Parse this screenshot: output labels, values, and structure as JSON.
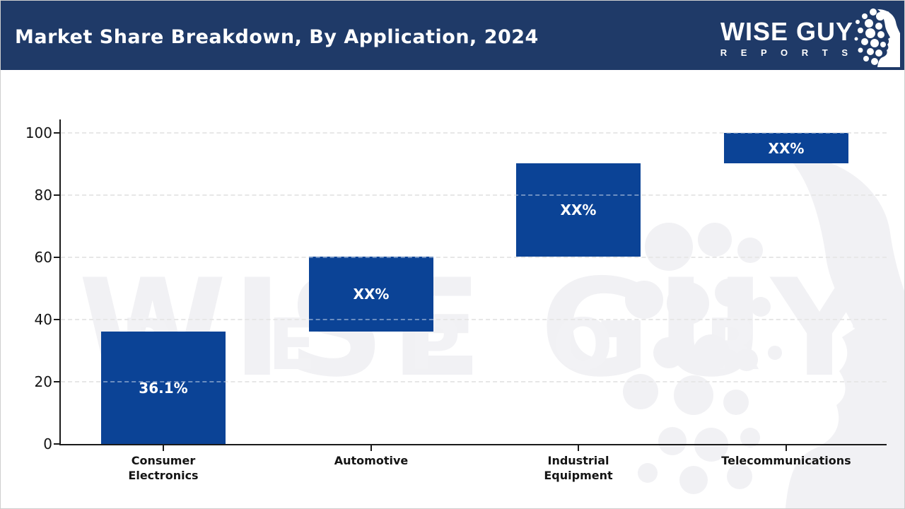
{
  "page": {
    "background": "#ffffff",
    "border_color": "#cfcfcf"
  },
  "header": {
    "title": "Market Share Breakdown, By Application, 2024",
    "bg_color": "#1F3A68",
    "text_color": "#ffffff",
    "logo": {
      "name": "WISE GUY",
      "subname": "R E P O R T S"
    }
  },
  "watermark": {
    "line1": "WISE GUY",
    "line2": "R E P O R T S"
  },
  "chart_data": {
    "type": "bar",
    "variant": "waterfall",
    "title": "Market Share Breakdown, By Application, 2024",
    "xlabel": "",
    "ylabel": "",
    "ylim": [
      0,
      104
    ],
    "yticks": [
      0,
      20,
      40,
      60,
      80,
      100
    ],
    "grid": true,
    "legend": false,
    "bar_color": "#0B4396",
    "value_label_color": "#ffffff",
    "categories": [
      "Consumer Electronics",
      "Automotive",
      "Industrial Equipment",
      "Telecommunications"
    ],
    "segments": [
      {
        "category": "Consumer Electronics",
        "category_lines": [
          "Consumer",
          "Electronics"
        ],
        "start": 0,
        "end": 36.1,
        "value_label": "36.1%"
      },
      {
        "category": "Automotive",
        "category_lines": [
          "Automotive"
        ],
        "start": 36.1,
        "end": 60.2,
        "value_label": "XX%"
      },
      {
        "category": "Industrial Equipment",
        "category_lines": [
          "Industrial",
          "Equipment"
        ],
        "start": 60.2,
        "end": 90.2,
        "value_label": "XX%"
      },
      {
        "category": "Telecommunications",
        "category_lines": [
          "Telecommunications"
        ],
        "start": 90.2,
        "end": 100,
        "value_label": "XX%"
      }
    ]
  }
}
